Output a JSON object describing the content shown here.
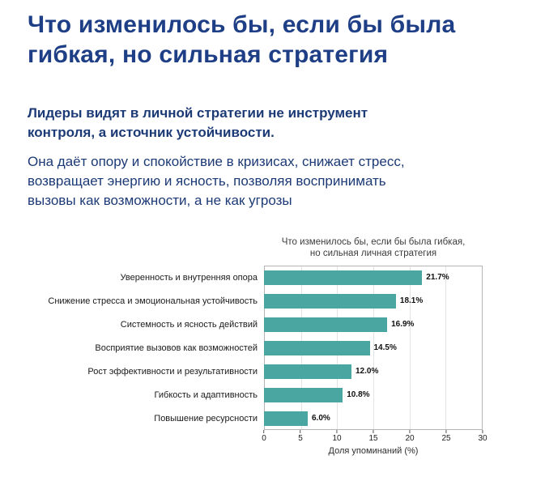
{
  "slide": {
    "title_lines": [
      "Что изменилось бы, если бы была",
      "гибкая, но сильная стратегия"
    ],
    "subtitle_lines": [
      "Лидеры видят в личной стратегии не инструмент",
      "контроля, а источник устойчивости."
    ],
    "body_lines": [
      "Она даёт опору и спокойствие в кризисах, снижает стресс,",
      "возвращает энергию и ясность, позволяя воспринимать",
      "вызовы как возможности, а не как угрозы"
    ]
  },
  "chart_data": {
    "type": "bar",
    "orientation": "horizontal",
    "title_line1": "Что изменилось бы, если бы была гибкая,",
    "title_line2": "но сильная личная стратегия",
    "categories": [
      "Уверенность и внутренняя опора",
      "Снижение стресса и эмоциональная устойчивость",
      "Системность и ясность действий",
      "Восприятие вызовов как возможностей",
      "Рост эффективности и результативности",
      "Гибкость и адаптивность",
      "Повышение ресурсности"
    ],
    "values": [
      21.7,
      18.1,
      16.9,
      14.5,
      12.0,
      10.8,
      6.0
    ],
    "value_labels": [
      "21.7%",
      "18.1%",
      "16.9%",
      "14.5%",
      "12.0%",
      "10.8%",
      "6.0%"
    ],
    "xlabel": "Доля упоминаний (%)",
    "xlim": [
      0,
      30
    ],
    "xticks": [
      0,
      5,
      10,
      15,
      20,
      25,
      30
    ],
    "grid": true,
    "legend": "none",
    "bar_color": "#4AA6A0"
  },
  "colors": {
    "heading": "#1E3E86",
    "text": "#1C3A75"
  }
}
